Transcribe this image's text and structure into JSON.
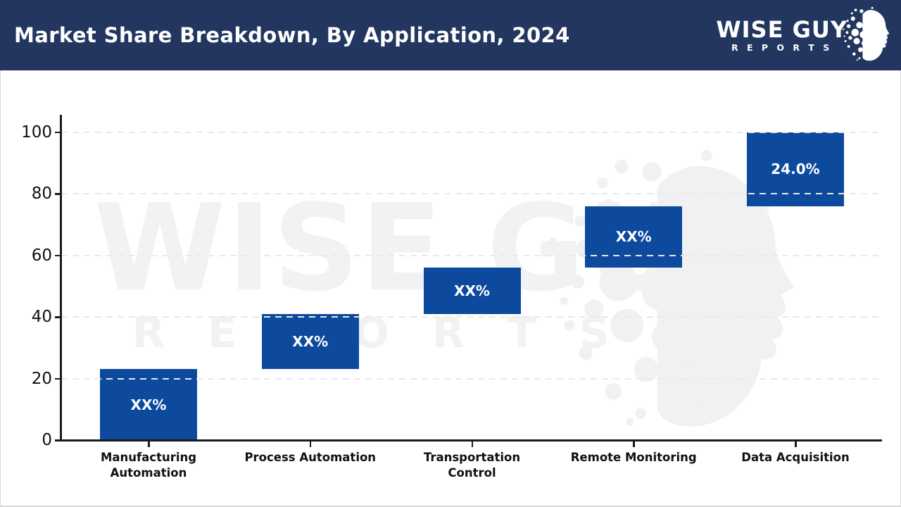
{
  "header": {
    "title": "Market Share Breakdown, By Application, 2024",
    "logo": {
      "line1": "WISE GUY",
      "line2": "R E P O R T S"
    }
  },
  "watermark": {
    "line1": "WISE GUY",
    "line2": "R E P O R T S"
  },
  "colors": {
    "header_bg": "#22365f",
    "bar": "#0d4a9e",
    "gridline": "#e9e9e9",
    "axis": "#1b1b1b",
    "watermark": "#f2f2f3"
  },
  "chart_data": {
    "type": "bar",
    "subtype": "waterfall",
    "title": "Market Share Breakdown, By Application, 2024",
    "categories": [
      "Manufacturing\nAutomation",
      "Process Automation",
      "Transportation\nControl",
      "Remote Monitoring",
      "Data Acquisition"
    ],
    "values": [
      23,
      18,
      15,
      20,
      24
    ],
    "base": [
      0,
      23,
      41,
      56,
      76
    ],
    "cumulative": [
      23,
      41,
      56,
      76,
      100
    ],
    "bar_labels": [
      "XX%",
      "XX%",
      "XX%",
      "XX%",
      "24.0%"
    ],
    "yticks": [
      0,
      20,
      40,
      60,
      80,
      100
    ],
    "ylim": [
      0,
      105
    ],
    "xlabel": "",
    "ylabel": "",
    "grid": "dashed-horizontal-over-bars",
    "legend": "none",
    "bar_color": "#0d4a9e"
  }
}
